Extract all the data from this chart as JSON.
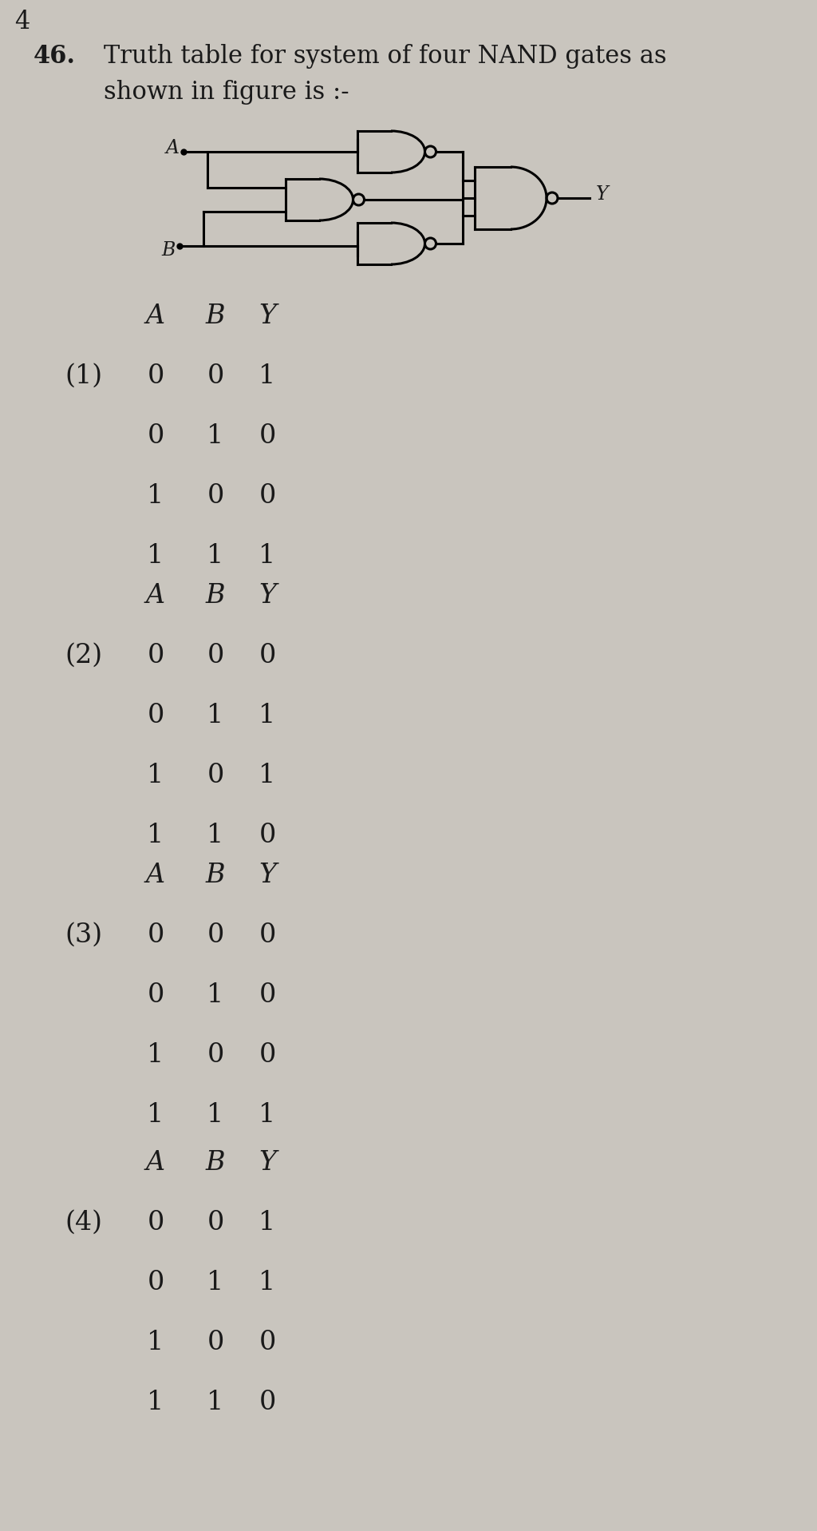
{
  "title_num": "46.",
  "title_text1": "Truth table for system of four NAND gates as",
  "title_text2": "shown in figure is :-",
  "bg_color": "#c9c5be",
  "text_color": "#1a1a1a",
  "page_num": "4",
  "sections": [
    {
      "label": "(1)",
      "header": [
        "A",
        "B",
        "Y"
      ],
      "rows": [
        [
          "0",
          "0",
          "1"
        ],
        [
          "0",
          "1",
          "0"
        ],
        [
          "1",
          "0",
          "0"
        ],
        [
          "1",
          "1",
          "1"
        ]
      ]
    },
    {
      "label": "(2)",
      "header": [
        "A",
        "B",
        "Y"
      ],
      "rows": [
        [
          "0",
          "0",
          "0"
        ],
        [
          "0",
          "1",
          "1"
        ],
        [
          "1",
          "0",
          "1"
        ],
        [
          "1",
          "1",
          "0"
        ]
      ]
    },
    {
      "label": "(3)",
      "header": [
        "A",
        "B",
        "Y"
      ],
      "rows": [
        [
          "0",
          "0",
          "0"
        ],
        [
          "0",
          "1",
          "0"
        ],
        [
          "1",
          "0",
          "0"
        ],
        [
          "1",
          "1",
          "1"
        ]
      ]
    },
    {
      "label": "(4)",
      "header": [
        "A",
        "B",
        "Y"
      ],
      "rows": [
        [
          "0",
          "0",
          "1"
        ],
        [
          "0",
          "1",
          "1"
        ],
        [
          "1",
          "0",
          "0"
        ],
        [
          "1",
          "1",
          "0"
        ]
      ]
    }
  ],
  "circuit": {
    "gate_lw": 2.2,
    "gate_color": "black"
  }
}
